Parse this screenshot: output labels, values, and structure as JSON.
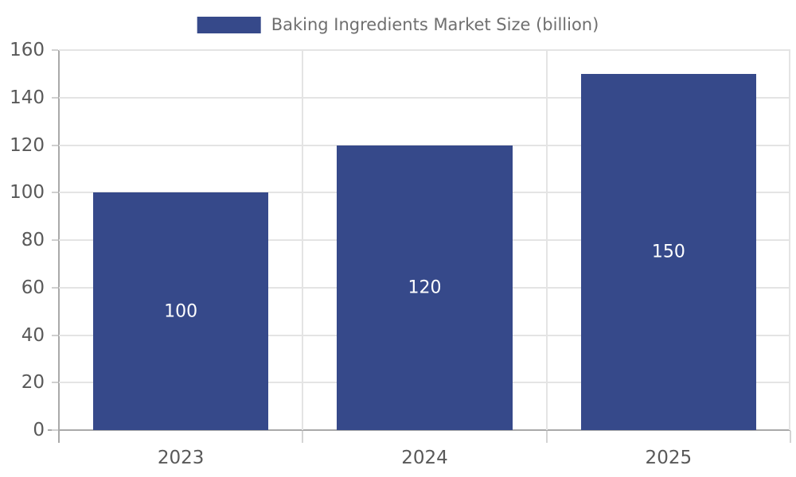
{
  "colors": {
    "bar": "#36498a",
    "value_label": "#ffffff",
    "grid": "#e4e4e4",
    "axis_line": "#a9a9a9",
    "tick_text": "#595959",
    "legend_text": "#6f6f6f",
    "background": "#ffffff"
  },
  "legend": {
    "label": "Baking Ingredients Market Size (billion)"
  },
  "chart_data": {
    "type": "bar",
    "title": "Baking Ingredients Market Size (billion)",
    "categories": [
      "2023",
      "2024",
      "2025"
    ],
    "series": [
      {
        "name": "Baking Ingredients Market Size (billion)",
        "values": [
          100,
          120,
          150
        ]
      }
    ],
    "value_labels": [
      "100",
      "120",
      "150"
    ],
    "xlabel": "",
    "ylabel": "",
    "ylim": [
      0,
      160
    ],
    "yticks": [
      0,
      20,
      40,
      60,
      80,
      100,
      120,
      140,
      160
    ],
    "grid": "horizontal-and-category-boundaries",
    "legend_position": "top-center",
    "bar_color": "#36498a",
    "value_label_color": "#ffffff",
    "bar_width_fraction": 0.72
  }
}
